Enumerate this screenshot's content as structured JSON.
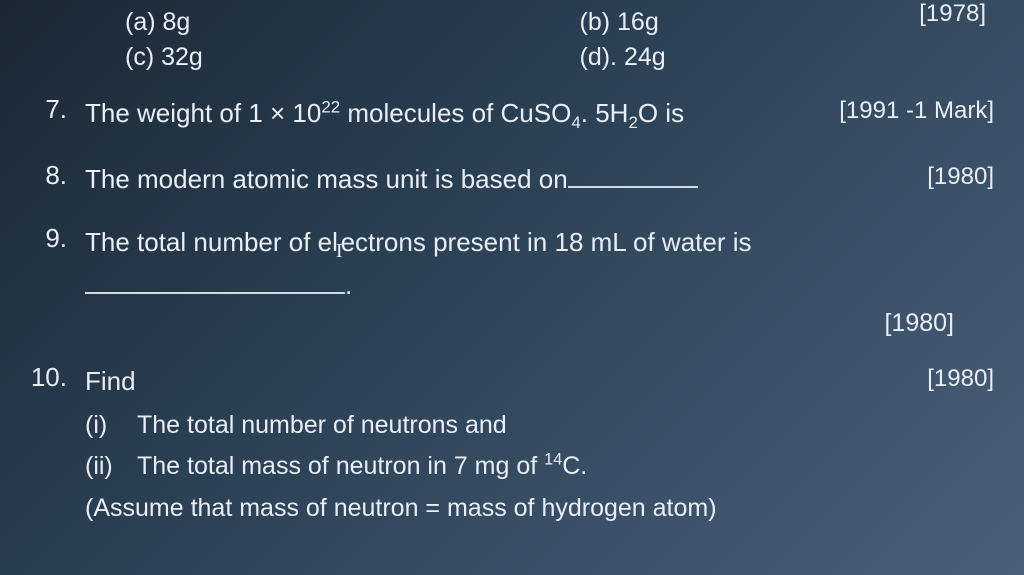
{
  "topright_tag": "[1978]",
  "options": {
    "a": {
      "marker": "(a)",
      "value": "8g"
    },
    "b": {
      "marker": "(b)",
      "value": "16g"
    },
    "c": {
      "marker": "(c)",
      "value": "32g"
    },
    "d": {
      "marker": "(d).",
      "value": "24g"
    }
  },
  "q7": {
    "num": "7.",
    "text_pre": "The weight of 1 × 10",
    "exp": "22",
    "text_mid": " molecules of CuSO",
    "sub1": "4",
    "dot": ". 5H",
    "sub2": "2",
    "text_post": "O is",
    "tag": "[1991 -1 Mark]"
  },
  "q8": {
    "num": "8.",
    "text": "The modern atomic mass unit is based on",
    "tag": "[1980]"
  },
  "q9": {
    "num": "9.",
    "text_pre": "The total number of el",
    "text_mid": "ectrons present in 18 mL of water is",
    "period": ".",
    "tag": "[1980]"
  },
  "q10": {
    "num": "10.",
    "text": "Find",
    "tag": "[1980]",
    "i_marker": "(i)",
    "i_text": "The total number of neutrons and",
    "ii_marker": "(ii)",
    "ii_text_pre": "The total mass of neutron in 7 mg of ",
    "ii_sup": "14",
    "ii_text_post": "C.",
    "assume": "(Assume that mass of neutron = mass of hydrogen atom)"
  }
}
